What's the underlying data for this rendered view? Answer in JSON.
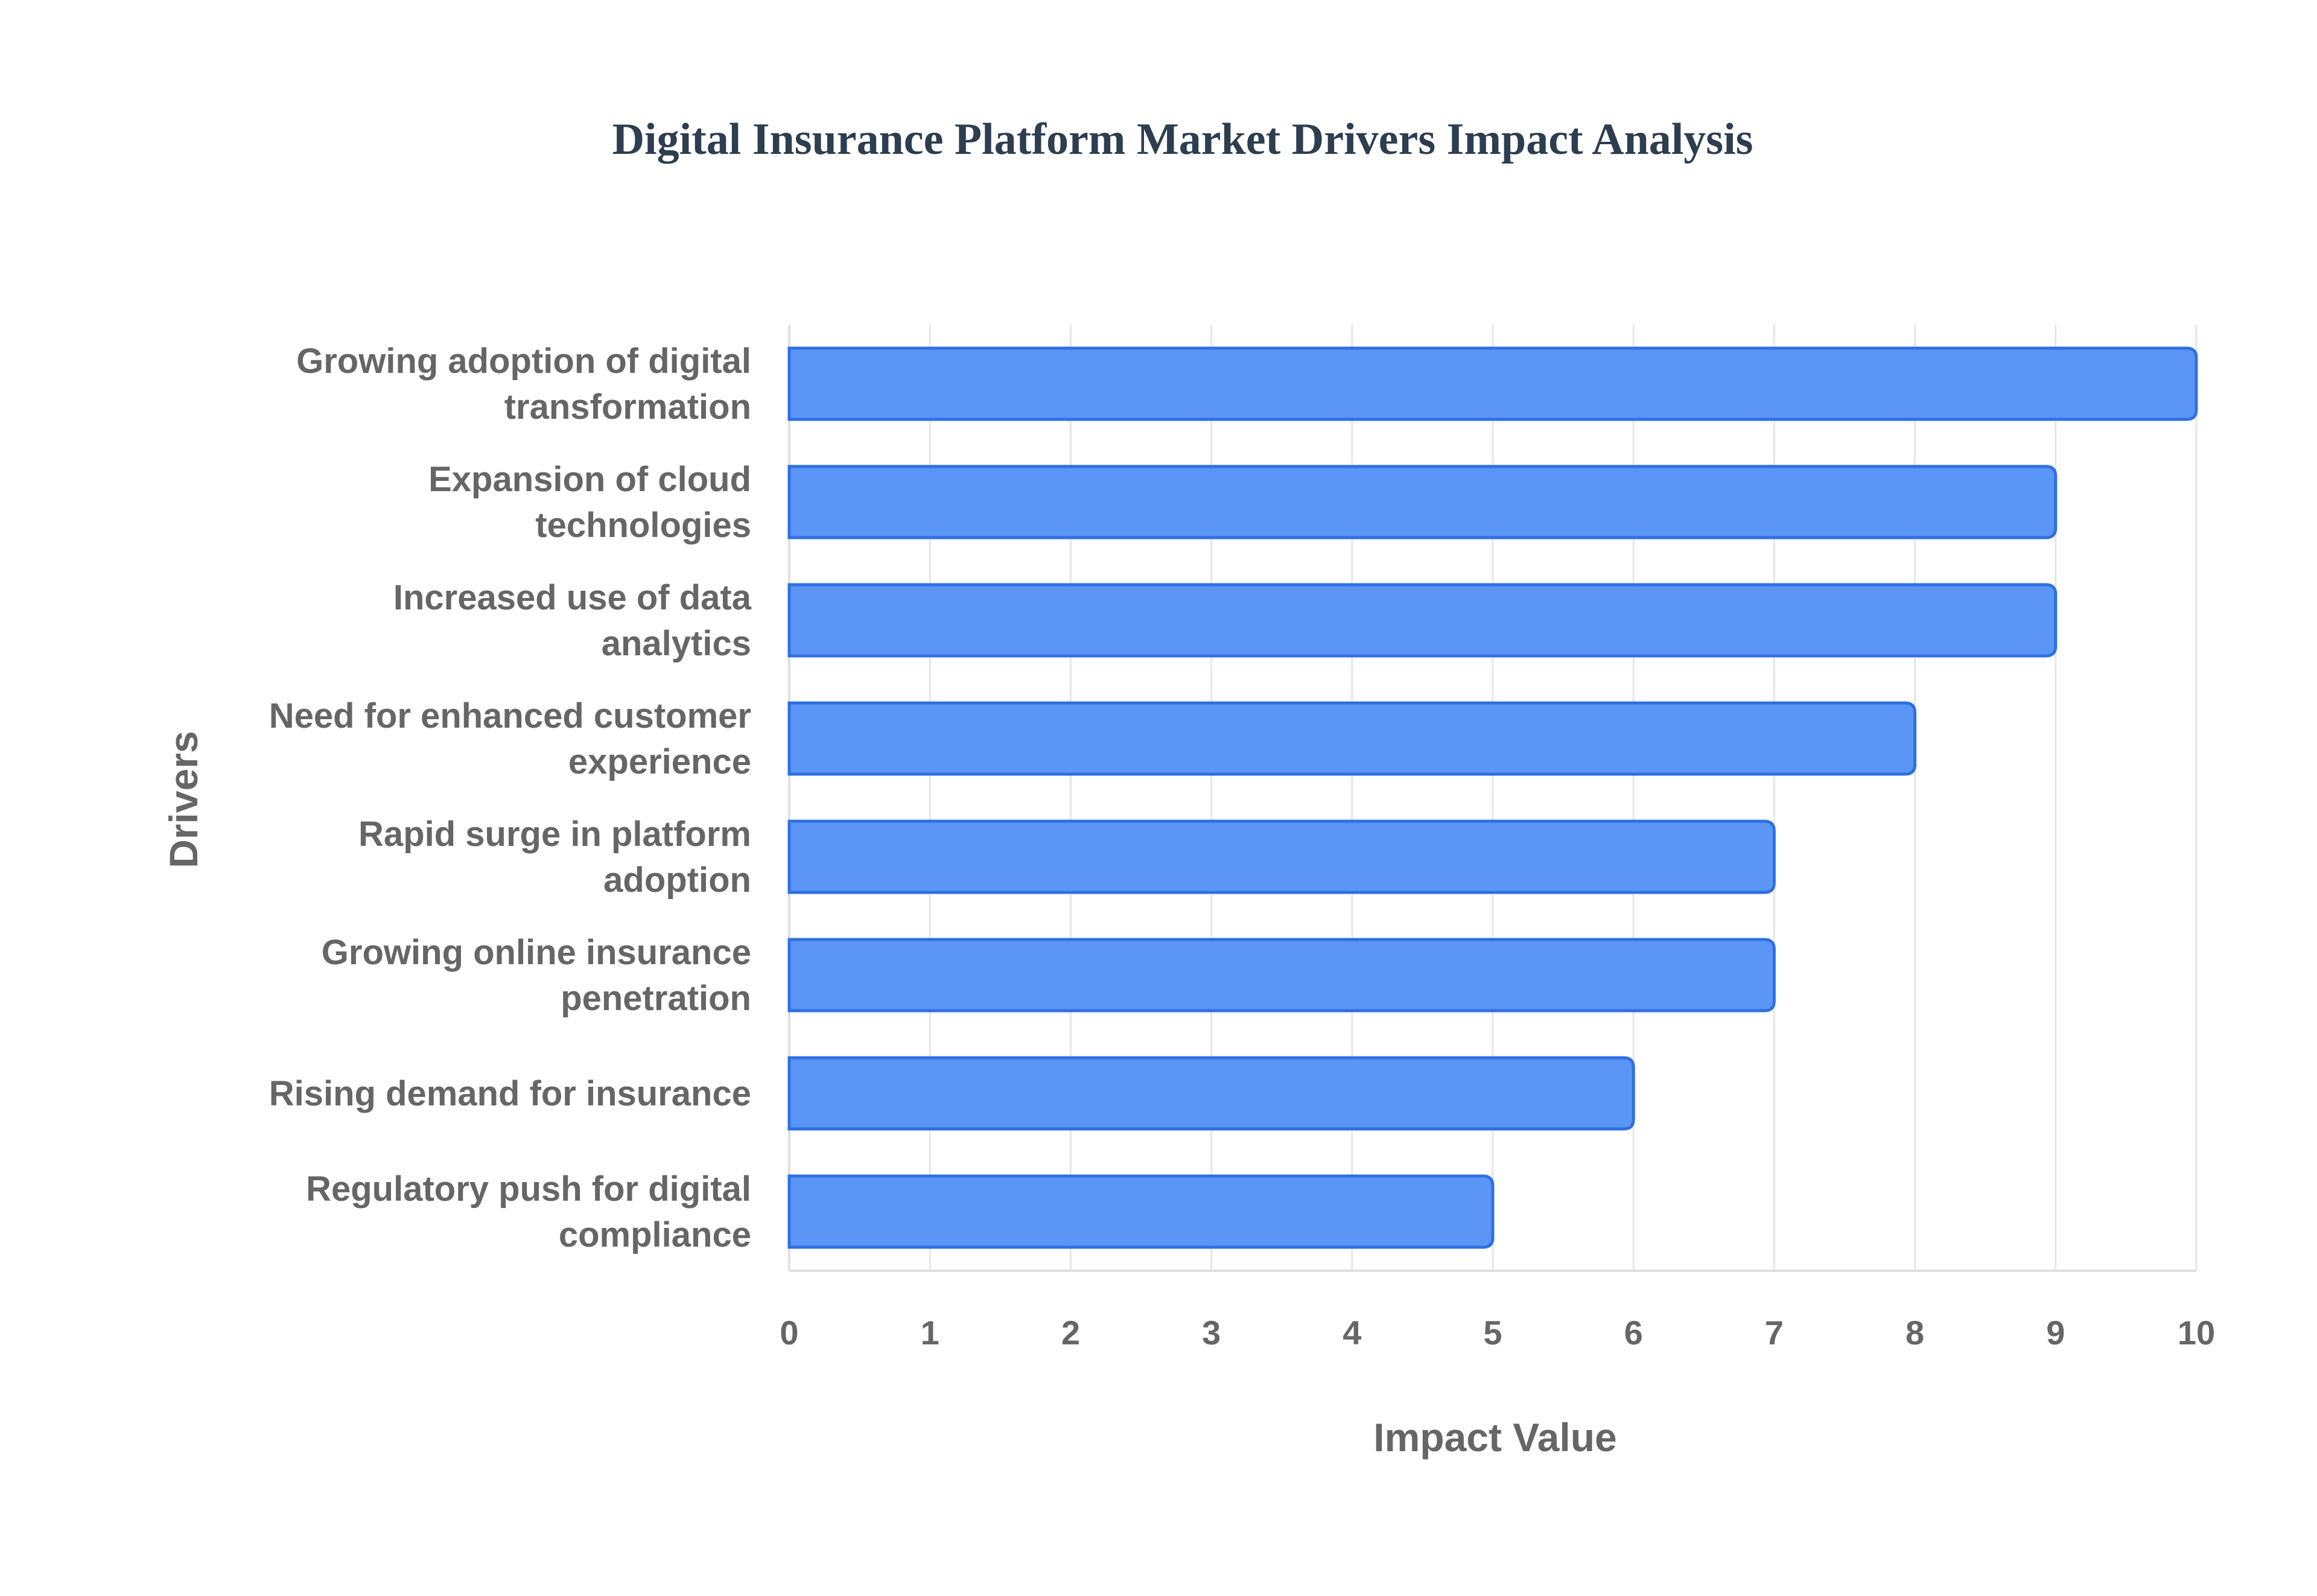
{
  "chart_data": {
    "type": "bar",
    "orientation": "horizontal",
    "title": "Digital Insurance Platform Market Drivers Impact Analysis",
    "xlabel": "Impact Value",
    "ylabel": "Drivers",
    "xlim": [
      0,
      10
    ],
    "x_ticks": [
      "0",
      "1",
      "2",
      "3",
      "4",
      "5",
      "6",
      "7",
      "8",
      "9",
      "10"
    ],
    "grid": true,
    "categories": [
      [
        "Growing adoption of digital",
        "transformation"
      ],
      [
        "Expansion of cloud",
        "technologies"
      ],
      [
        "Increased use of data",
        "analytics"
      ],
      [
        "Need for enhanced customer",
        "experience"
      ],
      [
        "Rapid surge in platform",
        "adoption"
      ],
      [
        "Growing online insurance",
        "penetration"
      ],
      [
        "Rising demand for insurance"
      ],
      [
        "Regulatory push for digital",
        "compliance"
      ]
    ],
    "values": [
      10,
      9,
      9,
      8,
      7,
      7,
      6,
      5
    ],
    "bar_color": "#5b95f5",
    "bar_edge_color": "#2f6fe4"
  }
}
